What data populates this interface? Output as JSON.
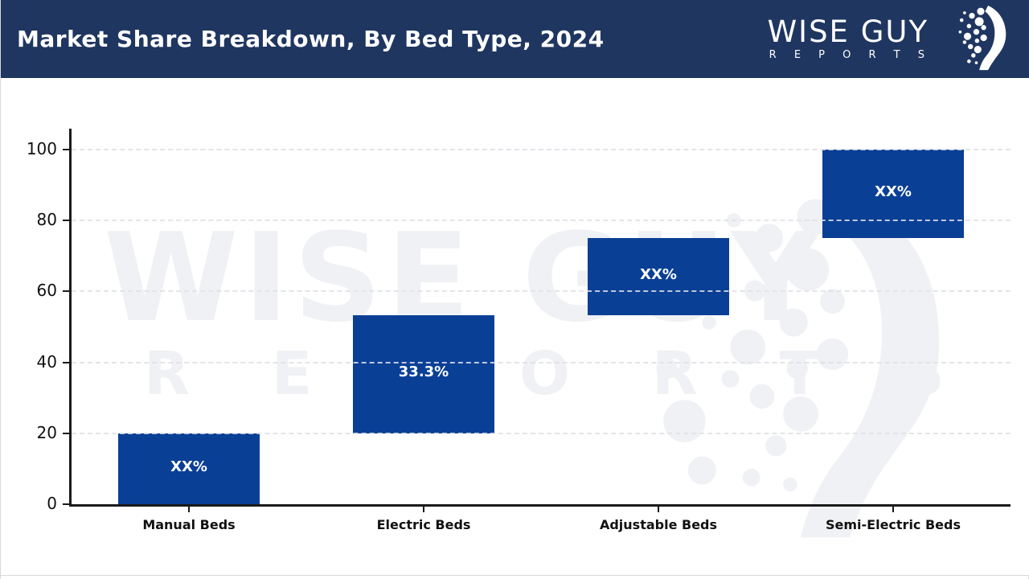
{
  "header": {
    "title": "Market Share Breakdown, By Bed Type, 2024",
    "bg_color": "#1f3660",
    "logo": {
      "line1": "WISE GUY",
      "line2": "R E P O R T S"
    }
  },
  "watermark": {
    "line1": "WISE GUY",
    "line2": "R E P O R T S"
  },
  "chart_data": {
    "type": "bar",
    "subtype": "waterfall",
    "title": "Market Share Breakdown, By Bed Type, 2024",
    "categories": [
      "Manual Beds",
      "Electric Beds",
      "Adjustable Beds",
      "Semi-Electric Beds"
    ],
    "segments": [
      {
        "category": "Manual Beds",
        "start": 0,
        "end": 20,
        "value": 20,
        "label": "XX%"
      },
      {
        "category": "Electric Beds",
        "start": 20,
        "end": 53.3,
        "value": 33.3,
        "label": "33.3%"
      },
      {
        "category": "Adjustable Beds",
        "start": 53.3,
        "end": 75,
        "value": 21.7,
        "label": "XX%"
      },
      {
        "category": "Semi-Electric Beds",
        "start": 75,
        "end": 100,
        "value": 25,
        "label": "XX%"
      }
    ],
    "yticks": [
      0,
      20,
      40,
      60,
      80,
      100
    ],
    "ylim": [
      0,
      100
    ],
    "xlabel": "",
    "ylabel": "",
    "grid": "horizontal-dashed",
    "legend": "none",
    "bar_color": "#0a3f96",
    "bar_label_color": "#ffffff"
  }
}
